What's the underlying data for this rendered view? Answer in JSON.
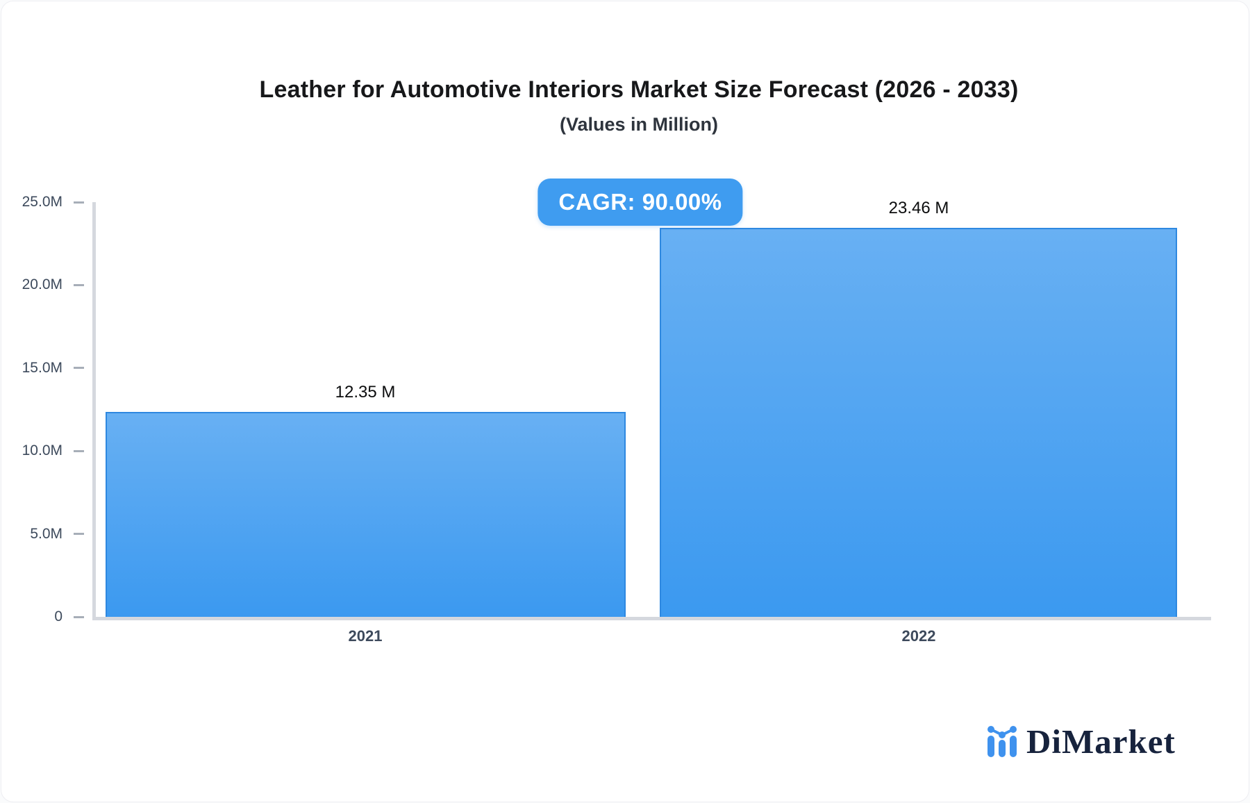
{
  "header": {
    "title": "Leather for Automotive Interiors Market Size Forecast (2026 - 2033)",
    "subtitle": "(Values in Million)",
    "cagr_label": "CAGR: 90.00%"
  },
  "chart_data": {
    "type": "bar",
    "categories": [
      "2021",
      "2022"
    ],
    "values": [
      12.35,
      23.46
    ],
    "data_labels": [
      "12.35 M",
      "23.46 M"
    ],
    "title": "Leather for Automotive Interiors Market Size Forecast (2026 - 2033)",
    "subtitle": "(Values in Million)",
    "xlabel": "",
    "ylabel": "",
    "unit": "Million",
    "ylim": [
      0,
      25
    ],
    "yticks": [
      {
        "value": 25,
        "label": "25.0M"
      },
      {
        "value": 20,
        "label": "20.0M"
      },
      {
        "value": 15,
        "label": "15.0M"
      },
      {
        "value": 10,
        "label": "10.0M"
      },
      {
        "value": 5,
        "label": "5.0M"
      },
      {
        "value": 0,
        "label": "0"
      }
    ],
    "grid": false,
    "legend": false,
    "annotations": [
      "CAGR: 90.00%"
    ],
    "bar_gradient_top": "#68b0f3",
    "bar_gradient_bottom": "#3b99f0",
    "bar_border_color": "#2e88e0"
  },
  "colors": {
    "badge_bg": "#3f9cf0",
    "axis_line": "#d5d8de",
    "tick_color": "#a7aeb8",
    "tick_label_color": "#3d4a5c",
    "title_color": "#17181a",
    "subtitle_color": "#2e343d",
    "data_label_color": "#0c0d0e",
    "logo_blue": "#3f92ee",
    "logo_text_color": "#17233d"
  },
  "footer": {
    "brand": "DiMarket"
  }
}
